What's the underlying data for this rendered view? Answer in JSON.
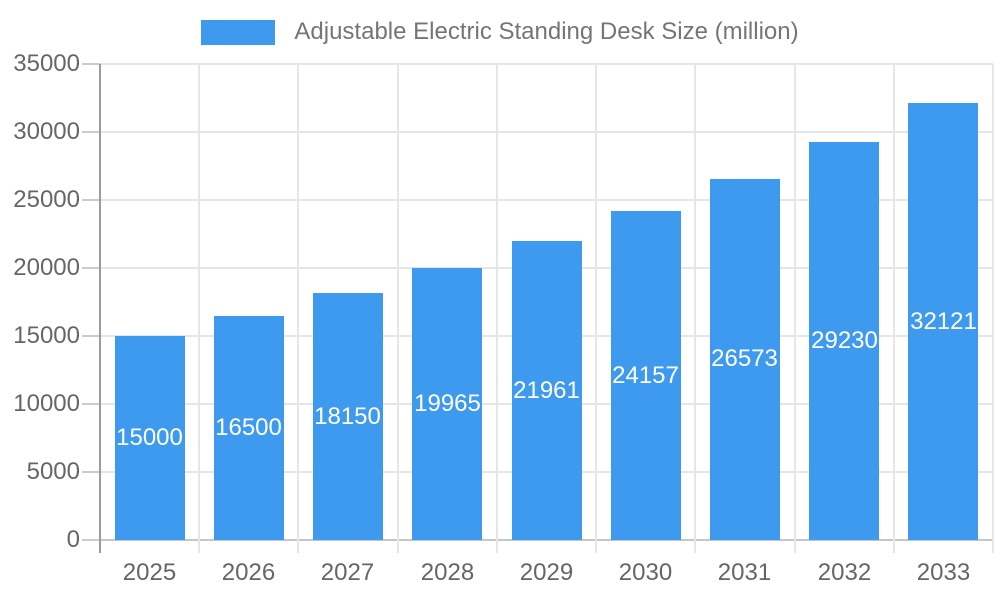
{
  "chart_data": {
    "type": "bar",
    "legend_label": "Adjustable Electric Standing Desk Size (million)",
    "legend_position": "top",
    "categories": [
      "2025",
      "2026",
      "2027",
      "2028",
      "2029",
      "2030",
      "2031",
      "2032",
      "2033"
    ],
    "values": [
      15000,
      16500,
      18150,
      19965,
      21961,
      24157,
      26573,
      29230,
      32121
    ],
    "value_labels": [
      "15000",
      "16500",
      "18150",
      "19965",
      "21961",
      "24157",
      "26573",
      "29230",
      "32121"
    ],
    "xlabel": "",
    "ylabel": "",
    "ylim": [
      0,
      35000
    ],
    "yticks": [
      0,
      5000,
      10000,
      15000,
      20000,
      25000,
      30000,
      35000
    ],
    "grid": true,
    "colors": {
      "bar": "#3E9AEE",
      "value_label": "#FFFFFF",
      "axis_text": "#666666",
      "legend_text": "#757575",
      "gridline": "#E6E6E6",
      "baseline": "#C6C6C6",
      "axis_line": "#9B9B9B",
      "tick": "#CCCCCC",
      "background": "#FFFFFF"
    }
  }
}
